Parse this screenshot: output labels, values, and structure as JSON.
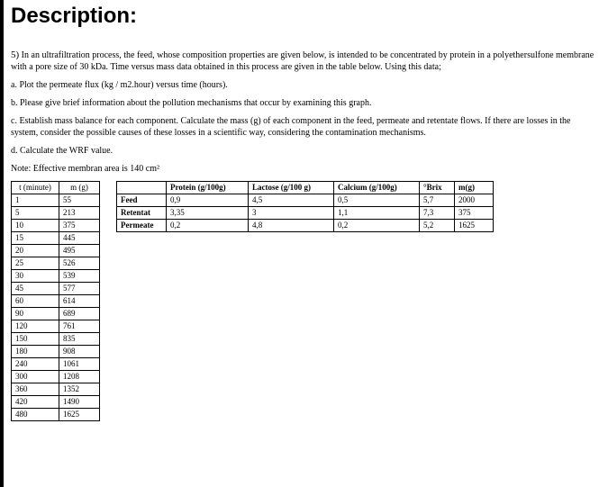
{
  "heading": "Description:",
  "question_number": "5)",
  "intro": "In an ultrafiltration process, the feed, whose composition properties are given below, is intended to be concentrated by protein in a polyethersulfone membrane with a pore size of 30 kDa. Time versus mass data obtained in this process are given in the table below. Using this data;",
  "items": {
    "a": "a. Plot the permeate flux (kg / m2.hour) versus time (hours).",
    "b": "b. Please give brief information about the pollution mechanisms that occur by examining this graph.",
    "c": "c. Establish mass balance for each component. Calculate the mass (g) of each component in the feed, permeate and retentate flows. If there are losses in the system, consider the possible causes of these losses in a scientific way, considering the contamination mechanisms.",
    "d": "d. Calculate the WRF value."
  },
  "note": "Note: Effective membran area is 140 cm²",
  "table1": {
    "headers": [
      "t (minute)",
      "m (g)"
    ],
    "rows": [
      [
        "1",
        "55"
      ],
      [
        "5",
        "213"
      ],
      [
        "10",
        "375"
      ],
      [
        "15",
        "445"
      ],
      [
        "20",
        "495"
      ],
      [
        "25",
        "526"
      ],
      [
        "30",
        "539"
      ],
      [
        "45",
        "577"
      ],
      [
        "60",
        "614"
      ],
      [
        "90",
        "689"
      ],
      [
        "120",
        "761"
      ],
      [
        "150",
        "835"
      ],
      [
        "180",
        "908"
      ],
      [
        "240",
        "1061"
      ],
      [
        "300",
        "1208"
      ],
      [
        "360",
        "1352"
      ],
      [
        "420",
        "1490"
      ],
      [
        "480",
        "1625"
      ]
    ]
  },
  "table2": {
    "headers": [
      "",
      "Protein (g/100g)",
      "Lactose (g/100 g)",
      "Calcium (g/100g)",
      "°Brix",
      "m(g)"
    ],
    "rows": [
      [
        "Feed",
        "0,9",
        "4,5",
        "0,5",
        "5,7",
        "2000"
      ],
      [
        "Retentat",
        "3,35",
        "3",
        "1,1",
        "7,3",
        "375"
      ],
      [
        "Permeate",
        "0,2",
        "4,8",
        "0,2",
        "5,2",
        "1625"
      ]
    ]
  }
}
